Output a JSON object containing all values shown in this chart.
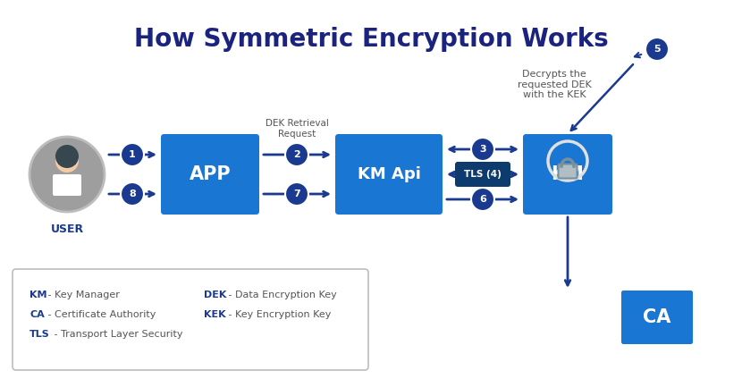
{
  "title": "How Symmetric Encryption Works",
  "title_fontsize": 20,
  "title_color": "#1a237e",
  "bg_color": "#ffffff",
  "blue_dark": "#1a3a8f",
  "blue_mid": "#1565c0",
  "blue_light": "#1976d2",
  "blue_box": "#1976d2",
  "tls_color": "#0d3b6e",
  "gray_circle": "#9e9e9e",
  "legend_items_left": [
    [
      "KM",
      "Key Manager"
    ],
    [
      "CA",
      "Certificate Authority"
    ],
    [
      "TLS",
      "Transport Layer Security"
    ]
  ],
  "legend_items_right": [
    [
      "DEK",
      "Data Encryption Key"
    ],
    [
      "KEK",
      "Key Encryption Key"
    ]
  ],
  "annotation_text": "Decrypts the\nrequested DEK\nwith the KEK"
}
